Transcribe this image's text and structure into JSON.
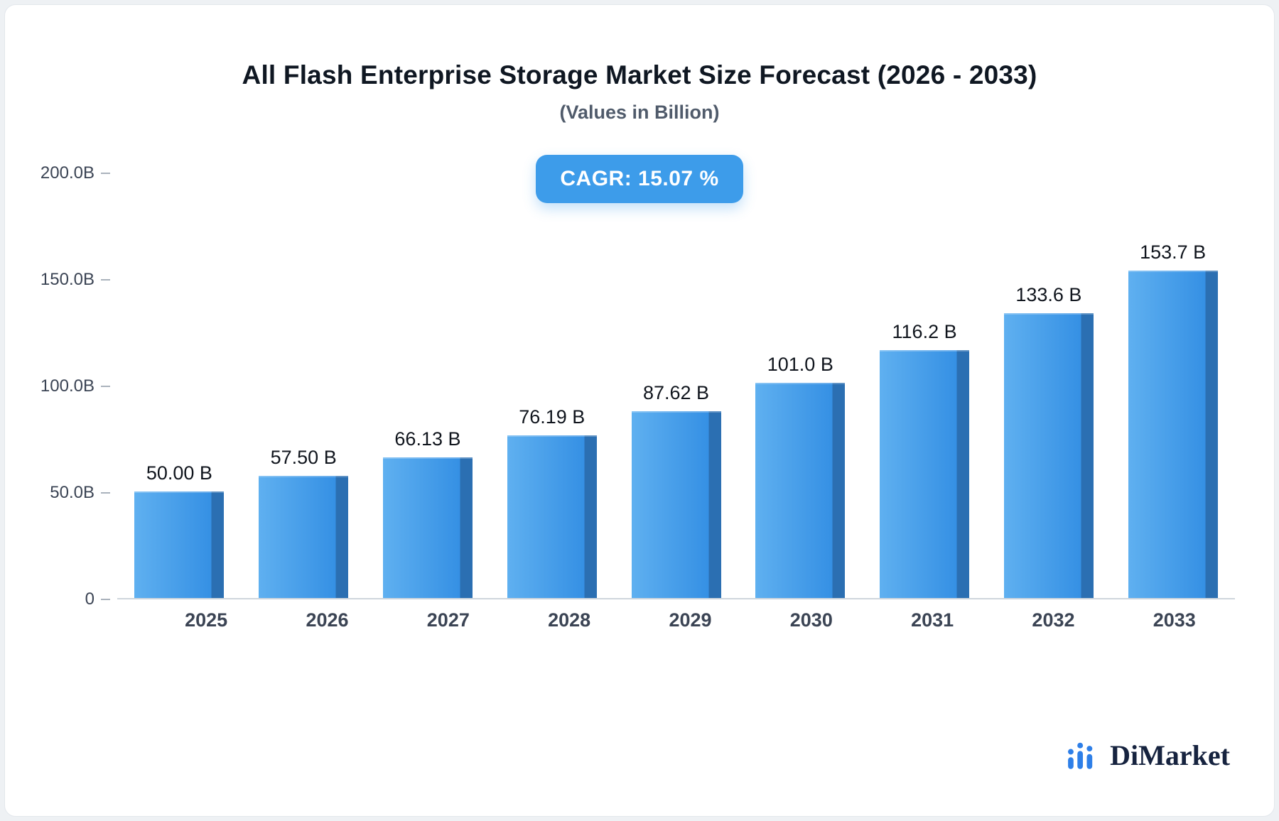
{
  "title": "All Flash Enterprise Storage Market Size Forecast (2026 - 2033)",
  "subtitle": "(Values in Billion)",
  "badge": {
    "label": "CAGR: 15.07 %"
  },
  "logo": {
    "text": "DiMarket"
  },
  "colors": {
    "bar_light": "#5fb0f0",
    "bar_main": "#3590e4",
    "bar_side": "#2b6fb2",
    "badge_bg": "#3d9cea",
    "logo_accent": "#2e7fe8",
    "logo_text": "#16233f"
  },
  "chart_data": {
    "type": "bar",
    "title": "All Flash Enterprise Storage Market Size Forecast (2026 - 2033)",
    "subtitle": "(Values in Billion)",
    "cagr": "15.07 %",
    "categories": [
      "2025",
      "2026",
      "2027",
      "2028",
      "2029",
      "2030",
      "2031",
      "2032",
      "2033"
    ],
    "values": [
      50.0,
      57.5,
      66.13,
      76.19,
      87.62,
      101.0,
      116.2,
      133.6,
      153.7
    ],
    "labels": [
      "50.00 B",
      "57.50 B",
      "66.13 B",
      "76.19 B",
      "87.62 B",
      "101.0 B",
      "116.2 B",
      "133.6 B",
      "153.7 B"
    ],
    "xlabel": "",
    "ylabel": "",
    "ylim": [
      0,
      200
    ],
    "yticks": [
      {
        "value": 0,
        "label": "0"
      },
      {
        "value": 50,
        "label": "50.0B"
      },
      {
        "value": 100,
        "label": "100.0B"
      },
      {
        "value": 150,
        "label": "150.0B"
      },
      {
        "value": 200,
        "label": "200.0B"
      }
    ],
    "grid": false,
    "legend": null
  }
}
